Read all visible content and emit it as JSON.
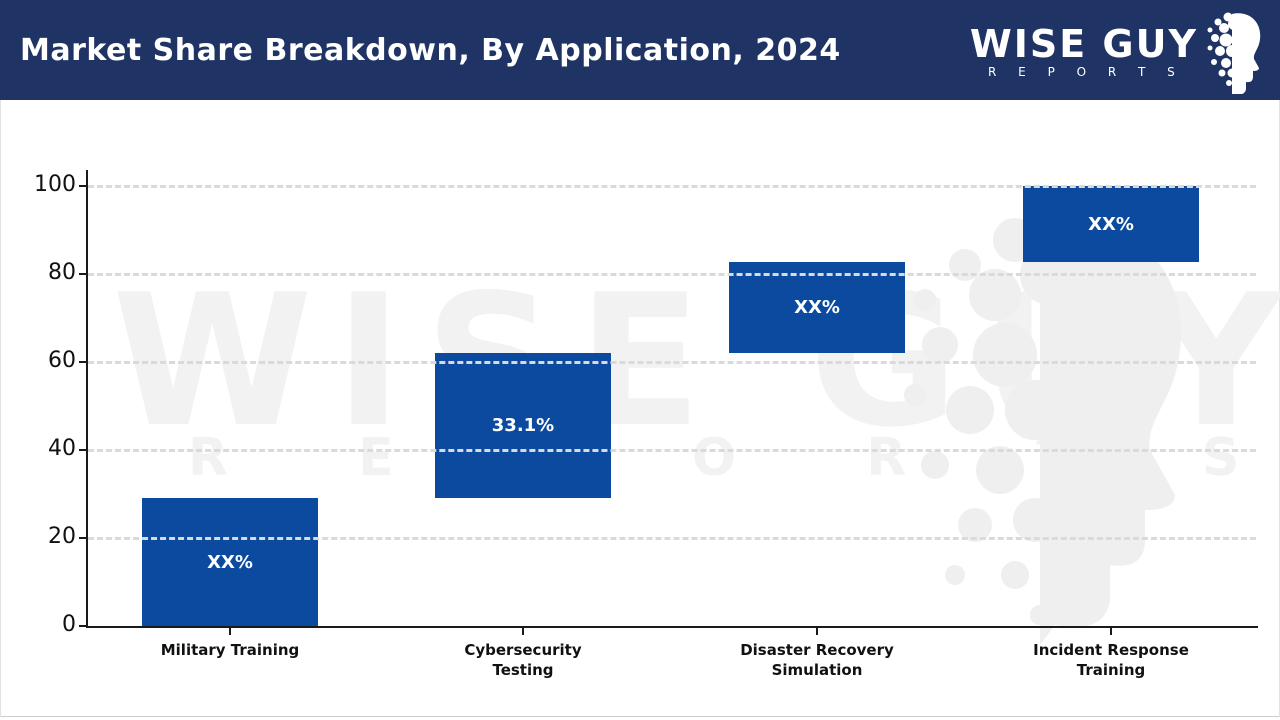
{
  "header": {
    "title": "Market Share Breakdown, By Application, 2024",
    "bg_color": "#1f3464",
    "logo": {
      "line1": "WISE GUY",
      "line2": "R E P O R T S"
    }
  },
  "watermark": {
    "line1": "WISE GUY",
    "line2": "R E P O R T S"
  },
  "chart_data": {
    "type": "bar",
    "subtype": "floating-waterfall",
    "title": "Market Share Breakdown, By Application, 2024",
    "categories": [
      "Military Training",
      "Cybersecurity Testing",
      "Disaster Recovery Simulation",
      "Incident Response Training"
    ],
    "segments": [
      {
        "start": 0,
        "end": 29,
        "value": 29.0,
        "label": "XX%"
      },
      {
        "start": 29,
        "end": 62.1,
        "value": 33.1,
        "label": "33.1%"
      },
      {
        "start": 62.1,
        "end": 82.7,
        "value": 20.6,
        "label": "XX%"
      },
      {
        "start": 82.7,
        "end": 100,
        "value": 17.3,
        "label": "XX%"
      }
    ],
    "xlabel": "",
    "ylabel": "",
    "ylim": [
      0,
      105
    ],
    "yticks": [
      0,
      20,
      40,
      60,
      80,
      100
    ],
    "grid": "horizontal-dashed",
    "legend": "none",
    "bar_color": "#0b4a9e",
    "bar_label_color": "#ffffff"
  }
}
